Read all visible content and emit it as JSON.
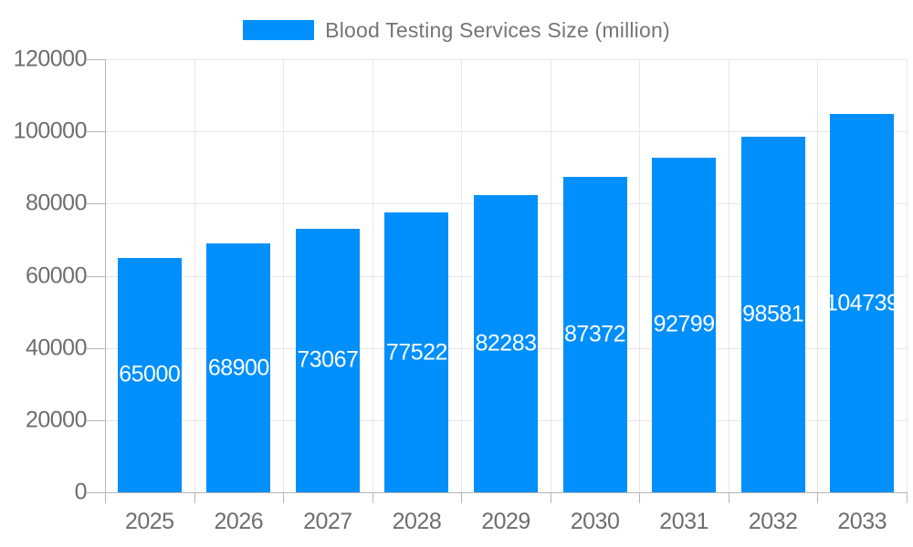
{
  "chart_data": {
    "type": "bar",
    "title": "Blood Testing Services Size (million)",
    "categories": [
      "2025",
      "2026",
      "2027",
      "2028",
      "2029",
      "2030",
      "2031",
      "2032",
      "2033"
    ],
    "series": [
      {
        "name": "Blood Testing Services Size (million)",
        "values": [
          65000,
          68900,
          73067,
          77522,
          82283,
          87372,
          92799,
          98581,
          104739
        ]
      }
    ],
    "data_labels": [
      "65000",
      "68900",
      "73067",
      "77522",
      "82283",
      "87372",
      "92799",
      "98581",
      "104739"
    ],
    "xlabel": "",
    "ylabel": "",
    "ylim": [
      0,
      120000
    ],
    "ytick_step": 20000,
    "yticks": [
      0,
      20000,
      40000,
      60000,
      80000,
      100000,
      120000
    ],
    "ytick_labels": [
      "0",
      "20000",
      "40000",
      "60000",
      "80000",
      "100000",
      "120000"
    ],
    "grid": "horizontal-and-vertical",
    "legend_position": "top-center",
    "data_label_position": "inside-center",
    "colors": {
      "bar": "#008FFB",
      "data_label": "#ffffff",
      "axis_label": "#6e6e6e",
      "legend_text": "#757575",
      "grid_line": "#e7e7e7",
      "axis_line": "#b6b6b6",
      "background": "#ffffff"
    }
  }
}
